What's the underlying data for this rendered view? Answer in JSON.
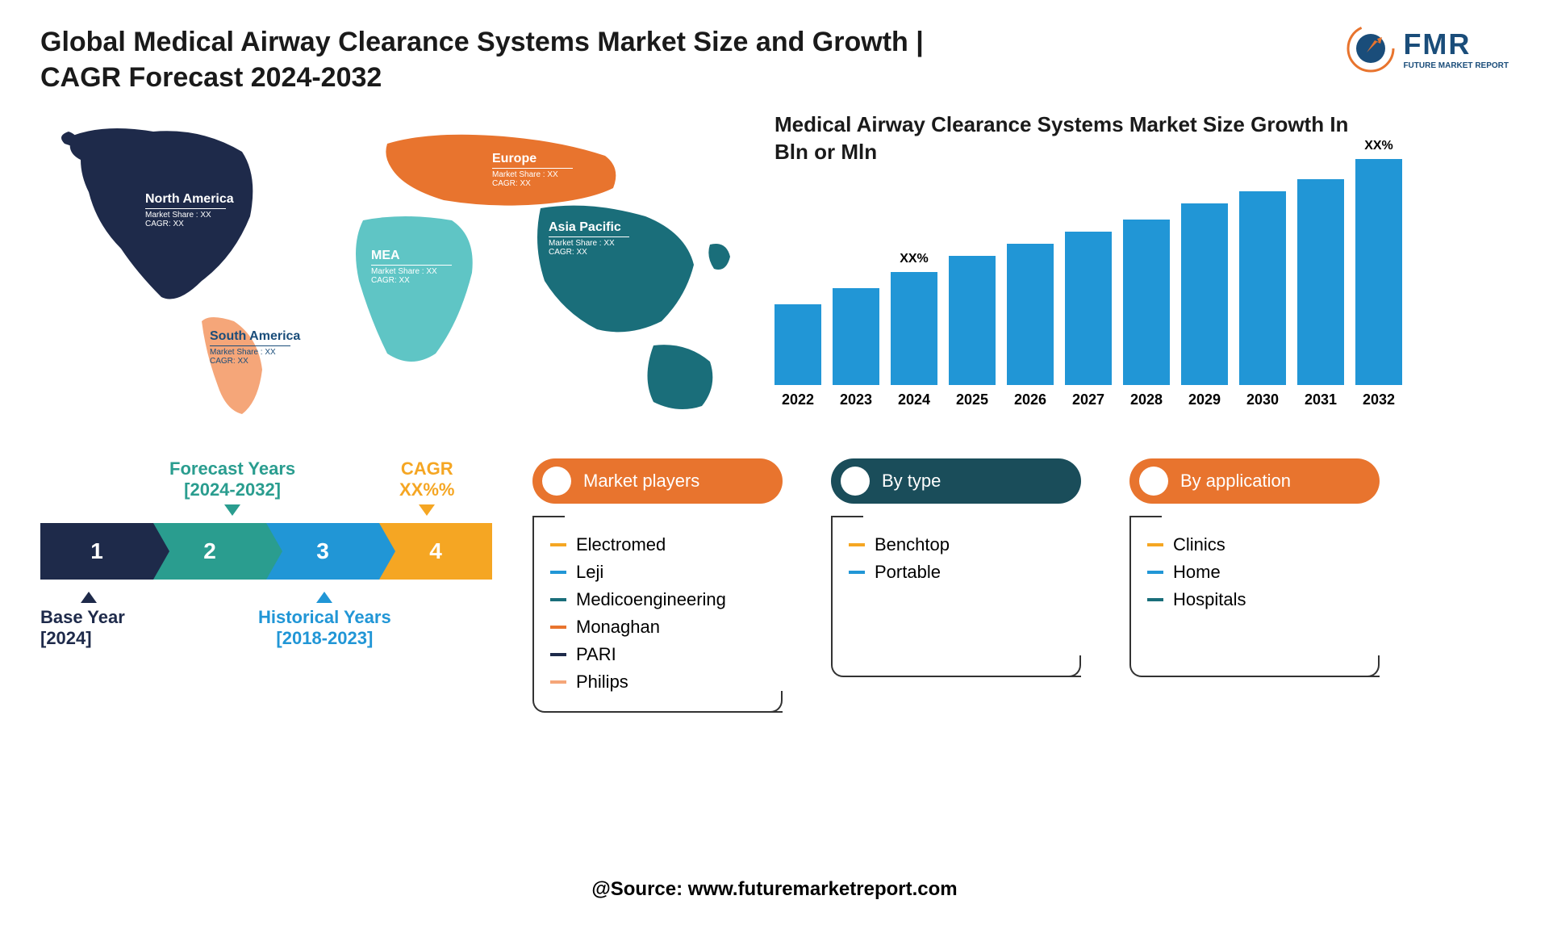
{
  "title": "Global Medical Airway Clearance Systems Market Size and Growth | CAGR Forecast 2024-2032",
  "logo": {
    "fmr": "FMR",
    "sub": "FUTURE MARKET REPORT"
  },
  "map": {
    "regions": [
      {
        "name": "North America",
        "share": "Market Share : XX",
        "cagr": "CAGR: XX",
        "color": "#1e2a4a"
      },
      {
        "name": "South America",
        "share": "Market Share : XX",
        "cagr": "CAGR: XX",
        "color": "#f5a679"
      },
      {
        "name": "Europe",
        "share": "Market Share : XX",
        "cagr": "CAGR: XX",
        "color": "#e8742e"
      },
      {
        "name": "MEA",
        "share": "Market Share : XX",
        "cagr": "CAGR: XX",
        "color": "#5fc5c5"
      },
      {
        "name": "Asia Pacific",
        "share": "Market Share : XX",
        "cagr": "CAGR: XX",
        "color": "#1a6e7a"
      }
    ]
  },
  "chart": {
    "title": "Medical Airway Clearance Systems Market Size Growth In\nBln or Mln",
    "bar_color": "#2196d6",
    "years": [
      "2022",
      "2023",
      "2024",
      "2025",
      "2026",
      "2027",
      "2028",
      "2029",
      "2030",
      "2031",
      "2032"
    ],
    "heights": [
      100,
      120,
      140,
      160,
      175,
      190,
      205,
      225,
      240,
      255,
      280
    ],
    "pct_labels": {
      "2": "XX%",
      "10": "XX%"
    }
  },
  "timeline": {
    "segments": [
      "1",
      "2",
      "3",
      "4"
    ],
    "colors": [
      "#1e2a4a",
      "#2a9d8f",
      "#2196d6",
      "#f5a623"
    ],
    "annotations": {
      "base": {
        "title": "Base Year",
        "sub": "[2024]",
        "color": "#1e2a4a"
      },
      "forecast": {
        "title": "Forecast Years",
        "sub": "[2024-2032]",
        "color": "#2a9d8f"
      },
      "historical": {
        "title": "Historical Years",
        "sub": "[2018-2023]",
        "color": "#2196d6"
      },
      "cagr": {
        "title": "CAGR",
        "sub": "XX%%",
        "color": "#f5a623"
      }
    }
  },
  "categories": [
    {
      "title": "Market players",
      "pill_color": "#e8742e",
      "items": [
        {
          "label": "Electromed",
          "color": "#f5a623"
        },
        {
          "label": "Leji",
          "color": "#2196d6"
        },
        {
          "label": "Medicoengineering",
          "color": "#1a6e7a"
        },
        {
          "label": "Monaghan",
          "color": "#e8742e"
        },
        {
          "label": "PARI",
          "color": "#1e2a4a"
        },
        {
          "label": "Philips",
          "color": "#f5a679"
        }
      ]
    },
    {
      "title": "By type",
      "pill_color": "#1a4d5a",
      "items": [
        {
          "label": "Benchtop",
          "color": "#f5a623"
        },
        {
          "label": "Portable",
          "color": "#2196d6"
        }
      ]
    },
    {
      "title": "By application",
      "pill_color": "#e8742e",
      "items": [
        {
          "label": "Clinics",
          "color": "#f5a623"
        },
        {
          "label": "Home",
          "color": "#2196d6"
        },
        {
          "label": "Hospitals",
          "color": "#1a6e7a"
        }
      ]
    }
  ],
  "source": "@Source: www.futuremarketreport.com"
}
